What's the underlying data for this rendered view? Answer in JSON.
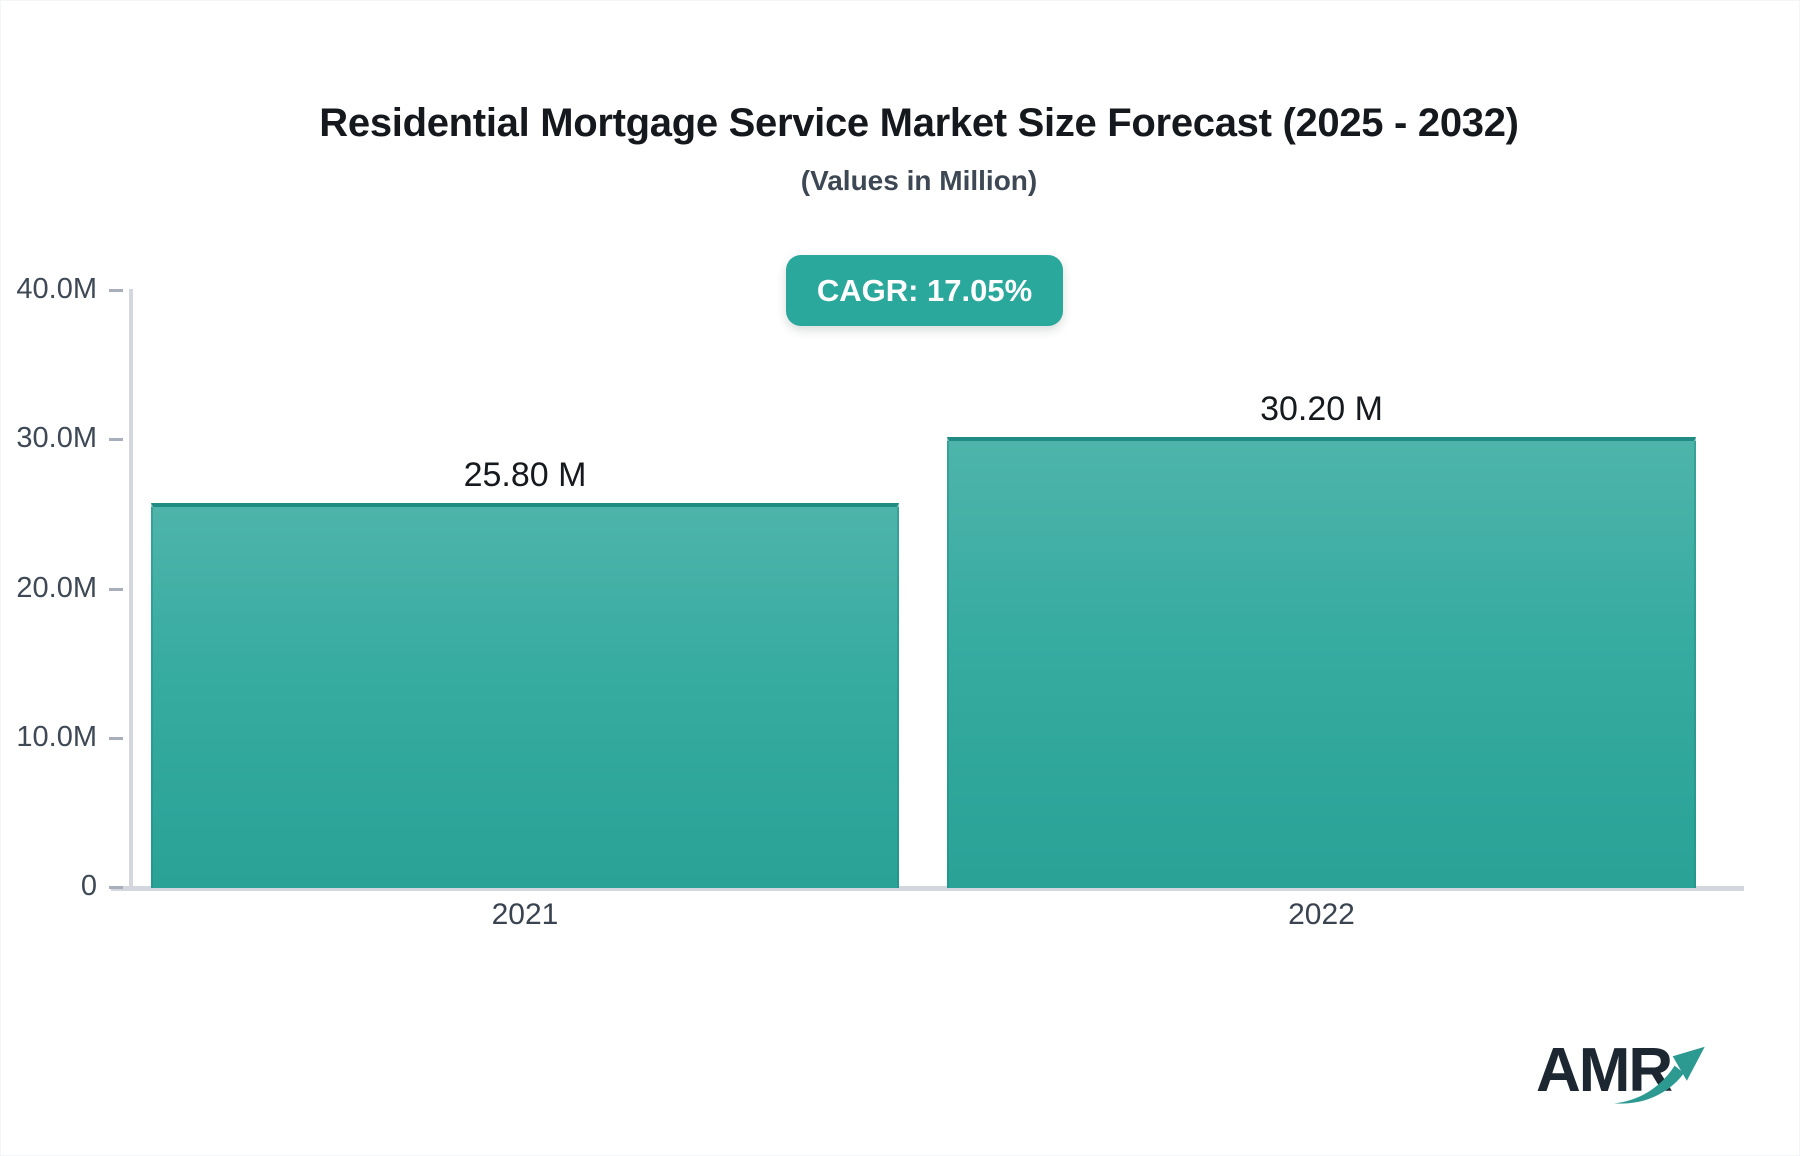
{
  "header": {
    "title": "Residential Mortgage Service Market Size Forecast (2025 - 2032)",
    "subtitle": "(Values in Million)"
  },
  "badge": {
    "label": "CAGR: 17.05%",
    "bg_color": "#2ba89c",
    "text_color": "#ffffff"
  },
  "chart_data": {
    "type": "bar",
    "title": "Residential Mortgage Service Market Size Forecast (2025 - 2032)",
    "subtitle": "(Values in Million)",
    "unit": "Million",
    "cagr_percent": "17.05%",
    "categories": [
      "2021",
      "2022"
    ],
    "values": [
      25.8,
      30.2
    ],
    "value_labels": [
      "25.80 M",
      "30.20 M"
    ],
    "ylim": [
      0,
      40
    ],
    "yticks": [
      {
        "value": 40,
        "label": "40.0M"
      },
      {
        "value": 30,
        "label": "30.0M"
      },
      {
        "value": 20,
        "label": "20.0M"
      },
      {
        "value": 10,
        "label": "10.0M"
      },
      {
        "value": 0,
        "label": "0"
      }
    ],
    "grid": false,
    "legend": false,
    "colors": {
      "bar_gradient_top": "#4eb4ab",
      "bar_gradient_bottom": "#2aa296",
      "bar_border": "#1f8b82",
      "axis_line": "#d4d8de",
      "tick_dash": "#a8aeba",
      "tick_text": "#3f4956",
      "value_text": "#16191d"
    }
  },
  "logo": {
    "text": "AMR",
    "arrow_icon": "growth-arrow",
    "text_color": "#1d2731",
    "accent_color": "#2d9a91"
  }
}
